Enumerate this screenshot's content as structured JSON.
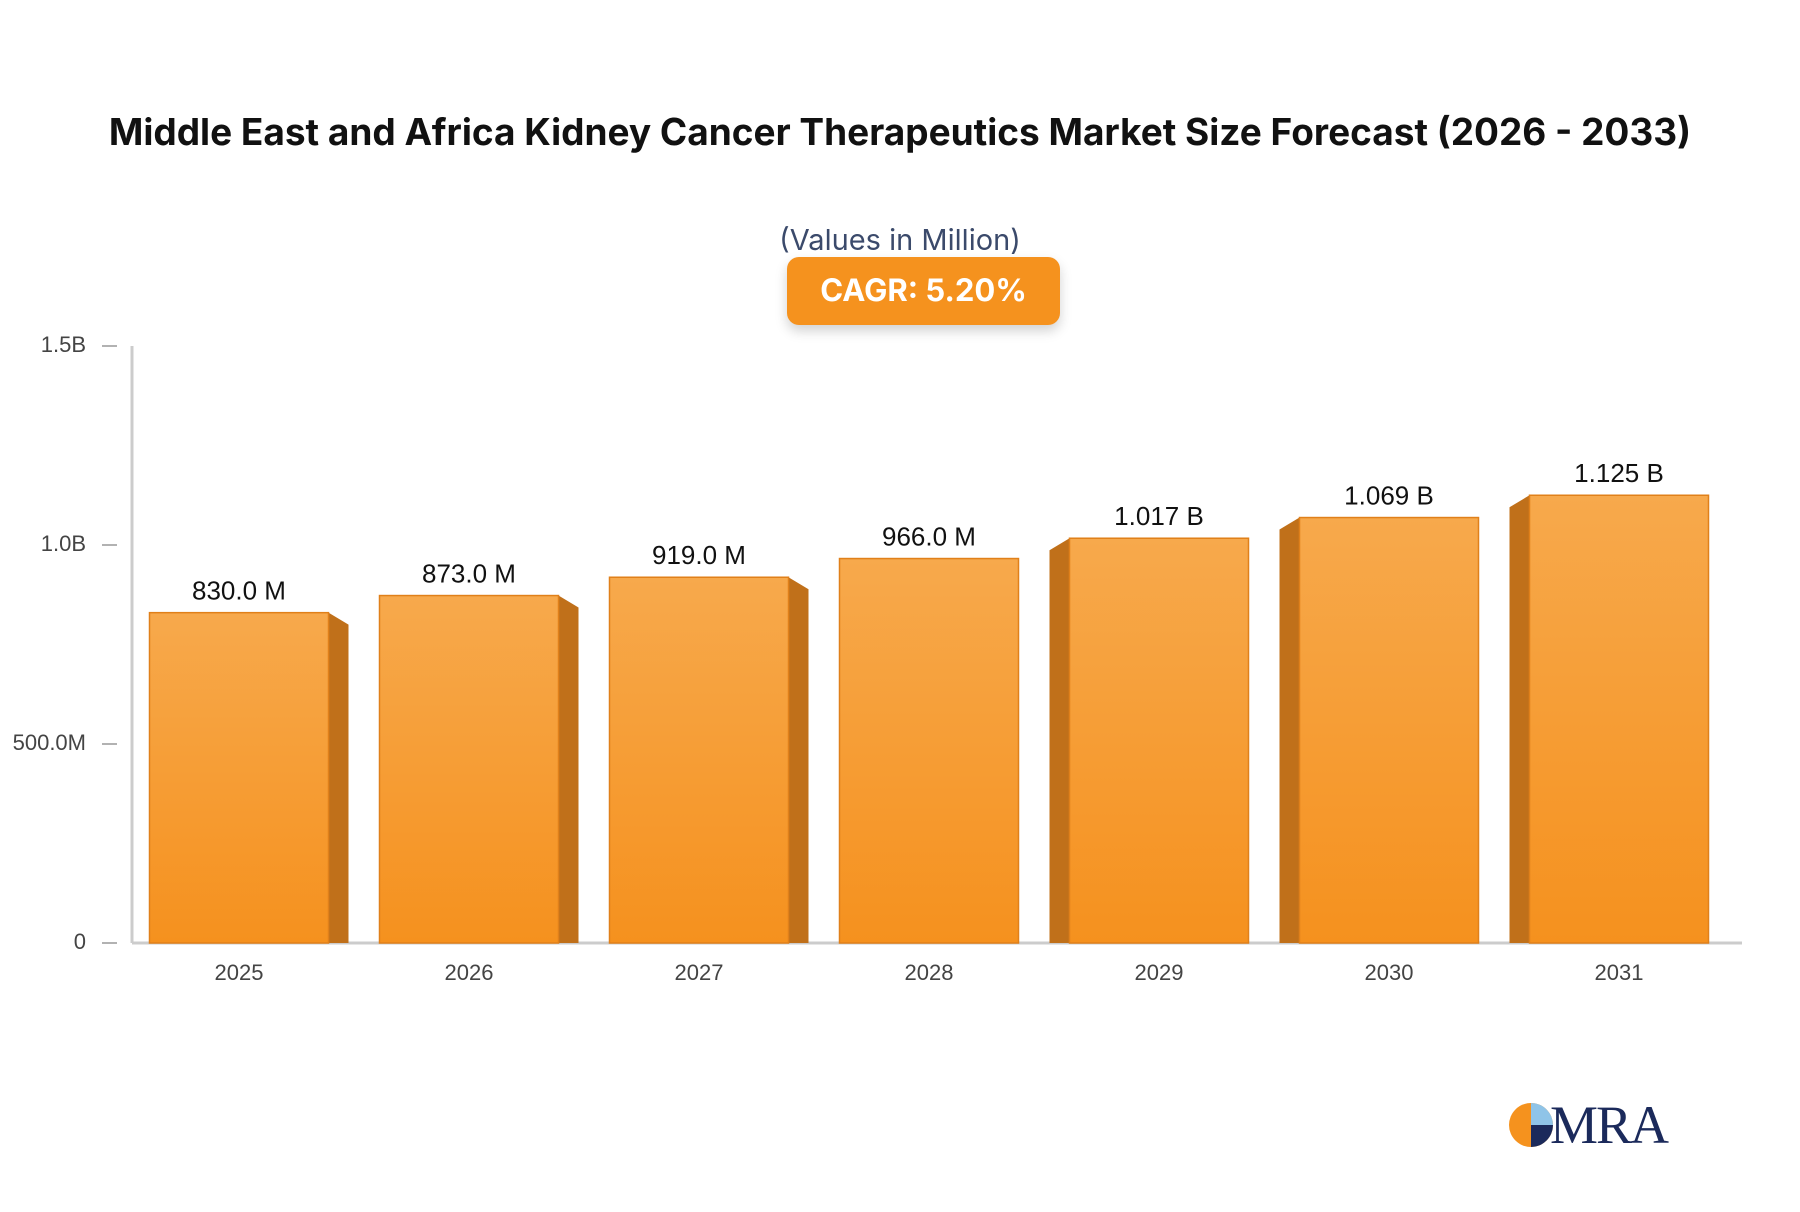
{
  "chart_data": {
    "type": "bar",
    "title": "Middle East and Africa Kidney Cancer Therapeutics Market Size Forecast (2026 - 2033)",
    "subtitle": "(Values in Million)",
    "badge": "CAGR: 5.20%",
    "logo": "MRA",
    "categories": [
      "2025",
      "2026",
      "2027",
      "2028",
      "2029",
      "2030",
      "2031"
    ],
    "values": [
      830,
      873,
      919,
      966,
      1017,
      1069,
      1125
    ],
    "value_labels": [
      "830.0 M",
      "873.0 M",
      "919.0 M",
      "966.0 M",
      "1.017 B",
      "1.069 B",
      "1.125 B"
    ],
    "color": "#f5921e",
    "ylim": [
      0,
      1500
    ],
    "yticks": [
      0,
      {
        "value": 500,
        "label": "500.0M"
      },
      {
        "value": 1000,
        "label": "1.0B"
      },
      {
        "value": 1500,
        "label": "1.5B"
      }
    ],
    "grid": false
  }
}
